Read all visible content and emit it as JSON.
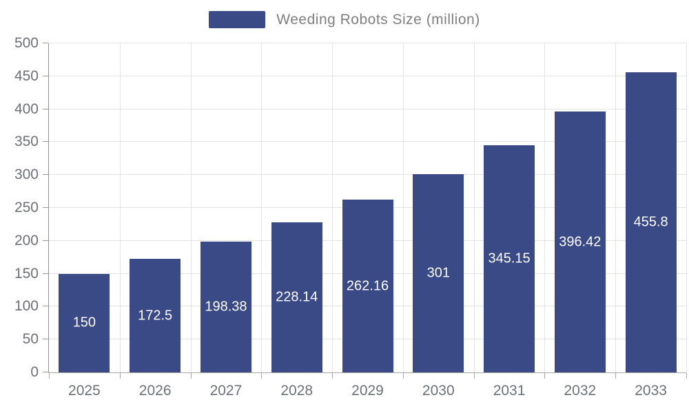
{
  "chart_data": {
    "type": "bar",
    "title": "Weeding Robots Size (million)",
    "legend": {
      "label": "Weeding Robots Size (million)",
      "position": "top-center"
    },
    "categories": [
      "2025",
      "2026",
      "2027",
      "2028",
      "2029",
      "2030",
      "2031",
      "2032",
      "2033"
    ],
    "series": [
      {
        "name": "Weeding Robots Size (million)",
        "values": [
          150,
          172.5,
          198.38,
          228.14,
          262.16,
          301,
          345.15,
          396.42,
          455.8
        ],
        "data_labels": [
          "150",
          "172.5",
          "198.38",
          "228.14",
          "262.16",
          "301",
          "345.15",
          "396.42",
          "455.8"
        ]
      }
    ],
    "xlabel": "",
    "ylabel": "",
    "ylim": [
      0,
      500
    ],
    "ytick_step": 50,
    "ytick_labels": [
      "0",
      "50",
      "100",
      "150",
      "200",
      "250",
      "300",
      "350",
      "400",
      "450",
      "500"
    ],
    "grid": "on",
    "label_position": "inside-center"
  },
  "colors": {
    "bar_fill": "#3A4A87",
    "value_label": "#ffffff",
    "axis_label": "#6e7079",
    "legend_text": "#7f7f7f",
    "gridline": "#e2e2e7",
    "axis_line": "#999999",
    "background": "#ffffff"
  }
}
